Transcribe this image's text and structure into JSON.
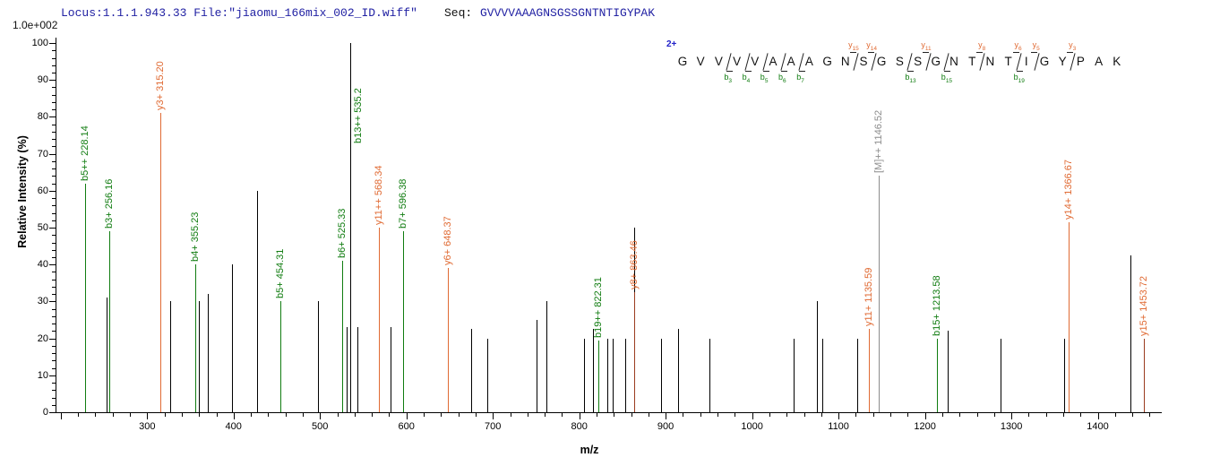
{
  "header": {
    "locus": "Locus:1.1.1.943.33 File:\"jiaomu_166mix_002_ID.wiff\"",
    "seq_label": "Seq:",
    "seq_value": "GVVVVAAAGNSGSSGNTNTIGYPAK",
    "scale_note": "1.0e+002"
  },
  "colors": {
    "header_text": "#2121a3",
    "seq_label_text": "#111111",
    "b_ion": "#107c10",
    "y_ion": "#e06a33",
    "precursor": "#8c8c8c",
    "peak_black": "#000000",
    "overlap_line": "#9a3b1e",
    "charge_label": "#2121c8",
    "axis": "#000000"
  },
  "sequence_diagram": {
    "charge_label": "2+",
    "residues": [
      "G",
      "V",
      "V",
      "V",
      "V",
      "A",
      "A",
      "A",
      "G",
      "N",
      "S",
      "G",
      "S",
      "S",
      "G",
      "N",
      "T",
      "N",
      "T",
      "I",
      "G",
      "Y",
      "P",
      "A",
      "K"
    ],
    "cleavages": [
      {
        "after": 3,
        "b": "b3"
      },
      {
        "after": 4,
        "b": "b4"
      },
      {
        "after": 5,
        "b": "b5"
      },
      {
        "after": 6,
        "b": "b6"
      },
      {
        "after": 7,
        "b": "b7"
      },
      {
        "after": 10,
        "y": "y15"
      },
      {
        "after": 11,
        "y": "y14"
      },
      {
        "after": 13,
        "b": "b13"
      },
      {
        "after": 14,
        "y": "y11"
      },
      {
        "after": 15,
        "b": "b15"
      },
      {
        "after": 17,
        "y": "y8"
      },
      {
        "after": 19,
        "y": "y6",
        "b": "b19"
      },
      {
        "after": 20,
        "y": "y5"
      },
      {
        "after": 22,
        "y": "y3"
      }
    ]
  },
  "chart_data": {
    "type": "bar",
    "subtype": "ms2_mass_spectrum",
    "title": "",
    "xlabel": "m/z",
    "ylabel": "Relative  Intensity (%)",
    "x_axis": {
      "min": 194,
      "max": 1472,
      "tick_start": 200,
      "tick_step": 20,
      "major_every": 100,
      "label_min": 300,
      "label_max": 1400
    },
    "y_axis": {
      "min": 0,
      "max": 100,
      "tick_step": 2,
      "major_every": 10
    },
    "legend": "none",
    "grid": false,
    "annotated_peaks": [
      {
        "ion": "b5++",
        "mz": 228.14,
        "intensity": 62,
        "label": "b5++ 228.14",
        "kind": "b"
      },
      {
        "ion": "b3+",
        "mz": 256.16,
        "intensity": 49,
        "label": "b3+ 256.16",
        "kind": "b"
      },
      {
        "ion": "y3+",
        "mz": 315.2,
        "intensity": 81,
        "label": "y3+ 315.20",
        "kind": "y"
      },
      {
        "ion": "b4+",
        "mz": 355.23,
        "intensity": 40,
        "label": "b4+ 355.23",
        "kind": "b"
      },
      {
        "ion": "b5+",
        "mz": 454.31,
        "intensity": 30,
        "label": "b5+ 454.31",
        "kind": "b"
      },
      {
        "ion": "b6+",
        "mz": 525.33,
        "intensity": 41,
        "label": "b6+ 525.33",
        "kind": "b"
      },
      {
        "ion": "b13++",
        "mz": 535.2,
        "intensity": 100,
        "label": "b13++ 535.2",
        "kind": "b",
        "line_black": true,
        "label_side": "right"
      },
      {
        "ion": "y11++",
        "mz": 568.34,
        "intensity": 50,
        "label": "y11++ 568.34",
        "kind": "y"
      },
      {
        "ion": "b7+",
        "mz": 596.38,
        "intensity": 49,
        "label": "b7+ 596.38",
        "kind": "b"
      },
      {
        "ion": "y6+",
        "mz": 648.37,
        "intensity": 39,
        "label": "y6+ 648.37",
        "kind": "y"
      },
      {
        "ion": "b19++",
        "mz": 822.31,
        "intensity": 19.5,
        "label": "b19++ 822.31",
        "kind": "b"
      },
      {
        "ion": "y8+",
        "mz": 863.46,
        "intensity": 32.5,
        "label": "y8+ 863.46",
        "kind": "y",
        "black_peak": 50,
        "overlap": true
      },
      {
        "ion": "y11+",
        "mz": 1135.59,
        "intensity": 22.5,
        "label": "y11+ 1135.59",
        "kind": "y"
      },
      {
        "ion": "[M]++",
        "mz": 1146.52,
        "intensity": 64,
        "label": "[M]++ 1146.52",
        "kind": "M"
      },
      {
        "ion": "b15+",
        "mz": 1213.58,
        "intensity": 20,
        "label": "b15+ 1213.58",
        "kind": "b"
      },
      {
        "ion": "y14+",
        "mz": 1366.67,
        "intensity": 51.5,
        "label": "y14+ 1366.67",
        "kind": "y"
      },
      {
        "ion": "y15+",
        "mz": 1453.72,
        "intensity": 20,
        "label": "y15+ 1453.72",
        "kind": "y",
        "black_peak": 20,
        "overlap": true
      }
    ],
    "unlabeled_peaks": [
      [
        253,
        31
      ],
      [
        327,
        30
      ],
      [
        360,
        30
      ],
      [
        370,
        32
      ],
      [
        398,
        40
      ],
      [
        427,
        60
      ],
      [
        498,
        30
      ],
      [
        531,
        23
      ],
      [
        543,
        23
      ],
      [
        582,
        23
      ],
      [
        675,
        22.5
      ],
      [
        694,
        20
      ],
      [
        751,
        25
      ],
      [
        762,
        30
      ],
      [
        805,
        20
      ],
      [
        816,
        22.5
      ],
      [
        832,
        20
      ],
      [
        839,
        20
      ],
      [
        853,
        20
      ],
      [
        895,
        20
      ],
      [
        914,
        22.5
      ],
      [
        951,
        20
      ],
      [
        1048,
        20
      ],
      [
        1075,
        30
      ],
      [
        1081,
        20
      ],
      [
        1122,
        20
      ],
      [
        1226,
        22
      ],
      [
        1287,
        20
      ],
      [
        1361,
        20
      ],
      [
        1438,
        42.5
      ]
    ]
  }
}
